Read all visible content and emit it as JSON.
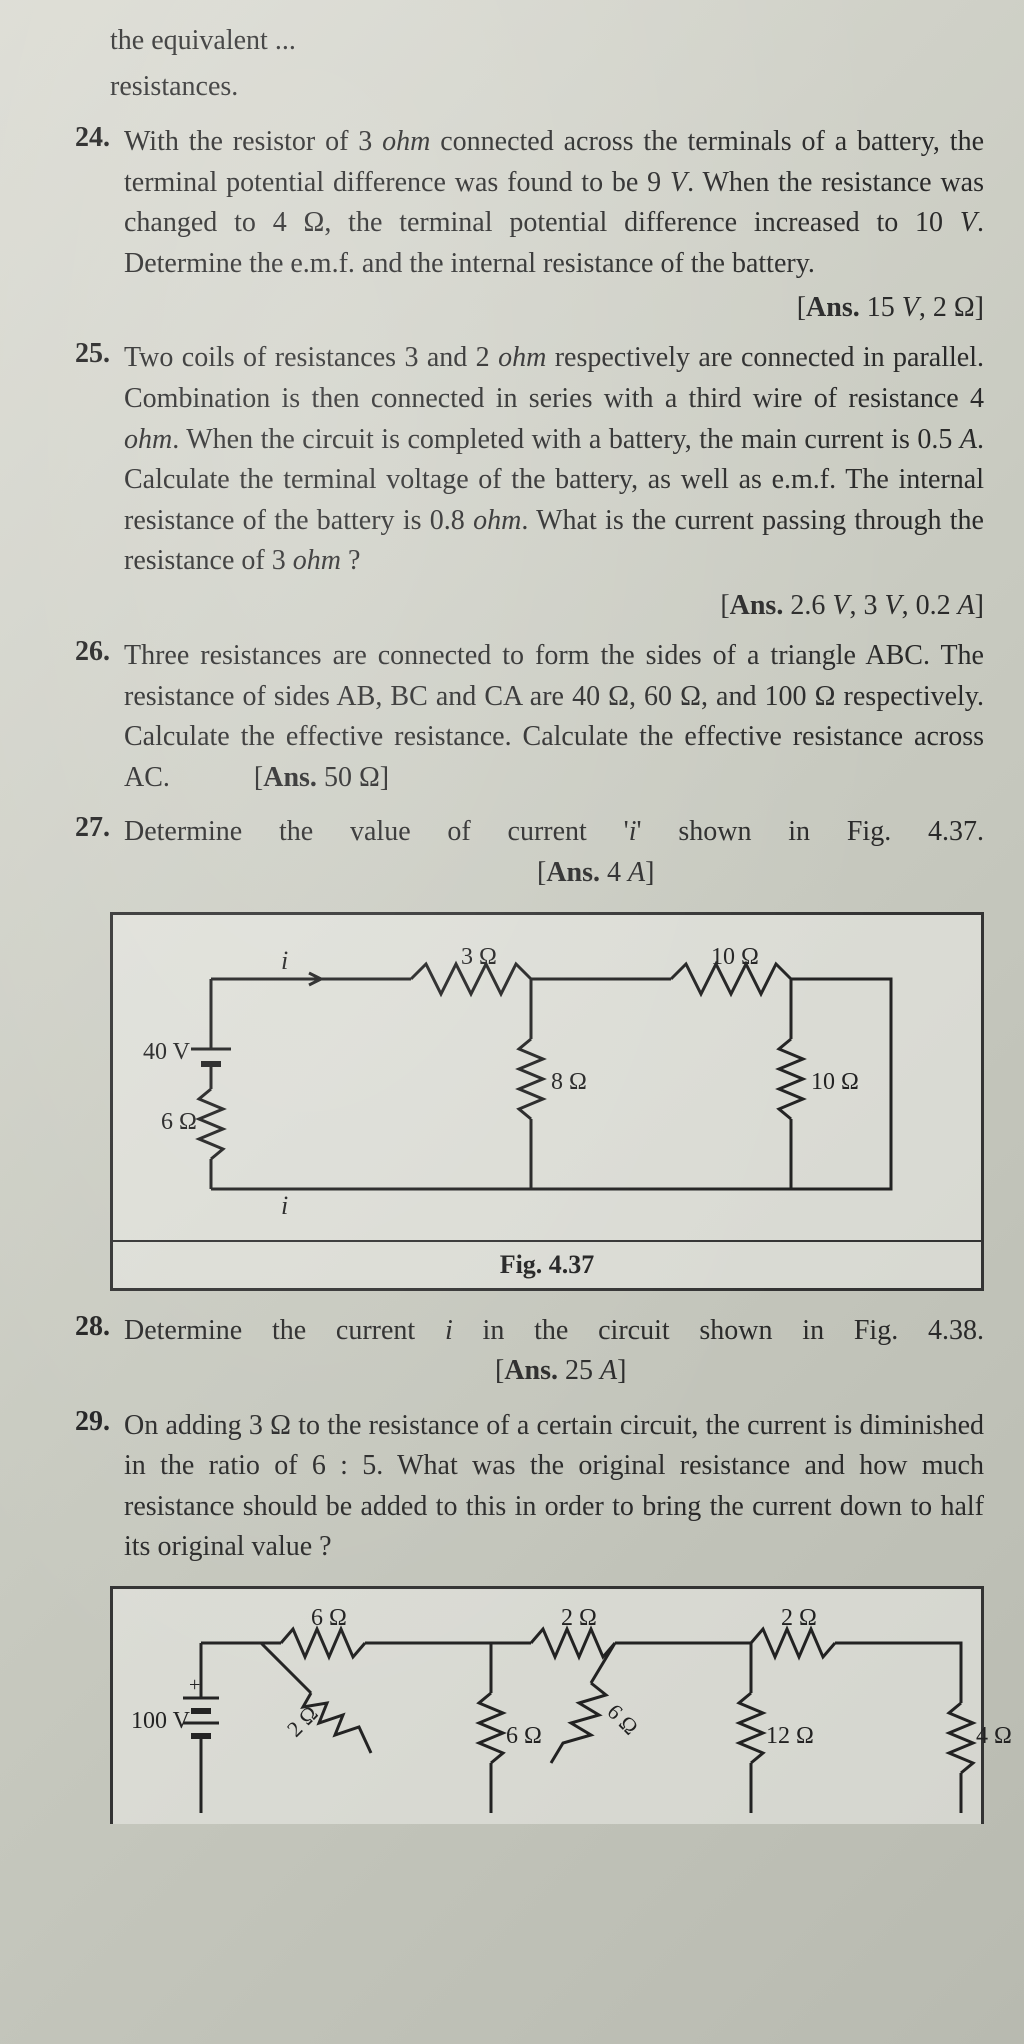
{
  "partial": {
    "line1": "the equivalent ...",
    "line2": "resistances."
  },
  "problems": [
    {
      "num": "24.",
      "text": "With the resistor of 3 <i>ohm</i> connected across the terminals of a battery, the terminal potential difference was found to be 9 <i>V</i>. When the resistance was changed to 4 Ω, the terminal potential difference increased to 10 <i>V</i>. Determine the e.m.f. and the internal resistance of the battery.",
      "answer": "[<b>Ans.</b> 15 <i>V</i>, 2 Ω]"
    },
    {
      "num": "25.",
      "text": "Two coils of resistances 3 and 2 <i>ohm</i> respectively are connected in parallel. Combination is then connected in series with a third wire of resistance 4 <i>ohm</i>. When the circuit is completed with a battery, the main current is 0.5 <i>A</i>. Calculate the terminal voltage of the battery, as well as e.m.f. The internal resistance of the battery is 0.8 <i>ohm</i>. What is the current passing through the resistance of 3 <i>ohm</i> ?",
      "answer": "[<b>Ans.</b> 2.6 <i>V</i>, 3 <i>V</i>, 0.2 <i>A</i>]"
    },
    {
      "num": "26.",
      "text": "Three resistances are connected to form the sides of a triangle ABC. The resistance of sides AB, BC and CA are 40 Ω, 60 Ω, and 100 Ω respectively. Calculate the effective resistance. Calculate the effective resistance across AC. &nbsp;&nbsp;&nbsp;&nbsp;&nbsp;&nbsp;&nbsp;&nbsp;&nbsp;&nbsp; [<b>Ans.</b> 50 Ω]",
      "answer": ""
    },
    {
      "num": "27.",
      "text": "Determine the value of current '<i>i</i>' shown in Fig. 4.37. &nbsp;&nbsp;&nbsp;&nbsp;&nbsp;&nbsp;&nbsp;&nbsp;&nbsp;&nbsp;&nbsp;&nbsp;&nbsp;&nbsp;&nbsp;&nbsp;&nbsp;&nbsp;&nbsp;&nbsp;&nbsp;&nbsp;&nbsp;&nbsp;&nbsp;&nbsp;&nbsp;&nbsp;&nbsp;&nbsp;&nbsp;&nbsp;&nbsp;&nbsp;&nbsp;&nbsp;&nbsp;&nbsp;&nbsp;&nbsp;&nbsp;&nbsp;&nbsp;&nbsp;&nbsp;&nbsp;&nbsp;&nbsp;&nbsp;&nbsp;&nbsp;&nbsp;&nbsp;&nbsp;&nbsp;&nbsp;&nbsp;&nbsp; [<b>Ans.</b> 4 <i>A</i>]",
      "answer": ""
    }
  ],
  "figure437": {
    "caption": "Fig. 4.37",
    "labels": {
      "i_top": "i",
      "i_bot": "i",
      "v": "40 V",
      "r_int": "6 Ω",
      "r3": "3 Ω",
      "r8": "8 Ω",
      "r10s": "10 Ω",
      "r10p": "10 Ω"
    }
  },
  "problems2": [
    {
      "num": "28.",
      "text": "Determine the current <i>i</i> in the circuit shown in Fig. 4.38. &nbsp;&nbsp;&nbsp;&nbsp;&nbsp;&nbsp;&nbsp;&nbsp;&nbsp;&nbsp;&nbsp;&nbsp;&nbsp;&nbsp;&nbsp;&nbsp;&nbsp;&nbsp;&nbsp;&nbsp;&nbsp;&nbsp;&nbsp;&nbsp;&nbsp;&nbsp;&nbsp;&nbsp;&nbsp;&nbsp;&nbsp;&nbsp;&nbsp;&nbsp;&nbsp;&nbsp;&nbsp;&nbsp;&nbsp;&nbsp;&nbsp;&nbsp;&nbsp;&nbsp;&nbsp;&nbsp;&nbsp;&nbsp;&nbsp;&nbsp;&nbsp;&nbsp; [<b>Ans.</b> 25 <i>A</i>]",
      "answer": ""
    },
    {
      "num": "29.",
      "text": "On adding 3 Ω to the resistance of a certain circuit, the current is diminished in the ratio of 6 : 5. What was the original resistance and how much resistance should be added to this in order to bring the current down to half its original value ?",
      "answer": ""
    }
  ],
  "figure438": {
    "labels": {
      "v": "100 V",
      "r6a": "6 Ω",
      "r2a": "2 Ω",
      "r2b": "2 Ω",
      "r2c": "2 Ω",
      "r6b": "6 Ω",
      "r6c": "6 Ω",
      "r12": "12 Ω",
      "r4": "4 Ω"
    }
  }
}
